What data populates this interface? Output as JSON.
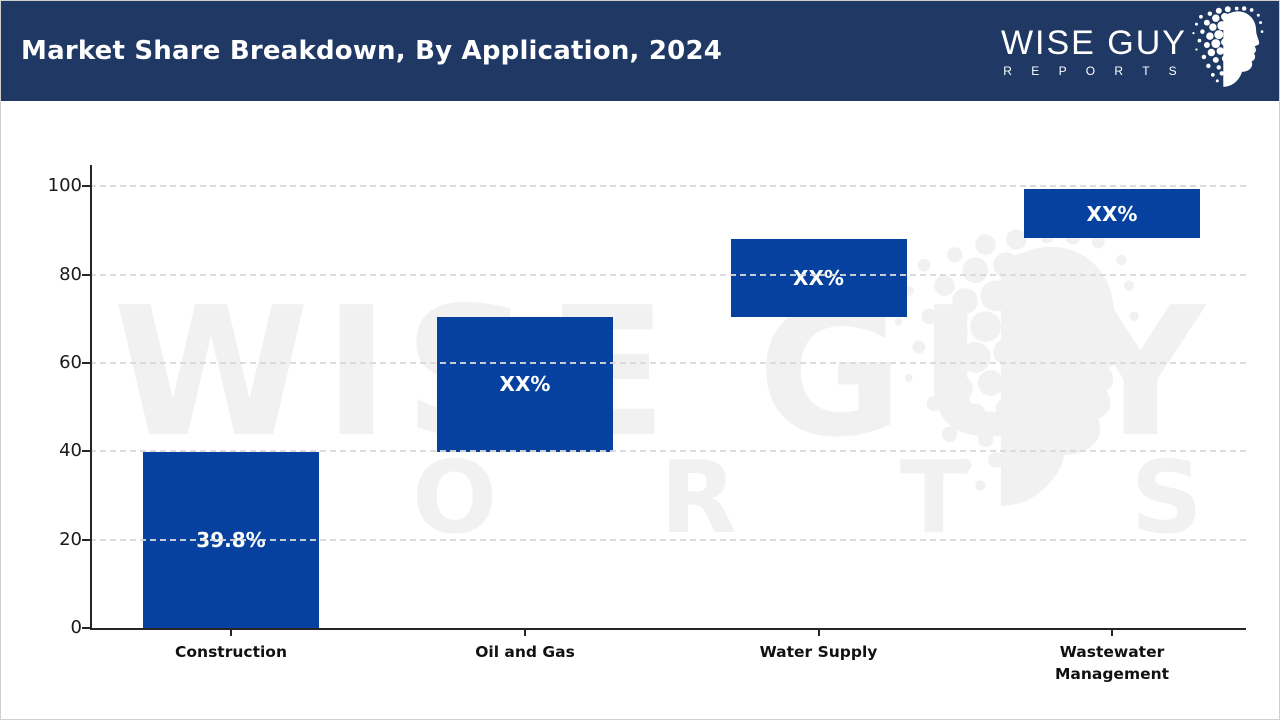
{
  "header": {
    "title": "Market Share Breakdown, By Application, 2024",
    "logo": {
      "wordmark": "WISE GUY",
      "subtext": "R E P O R T S"
    }
  },
  "watermark": {
    "line1": "WISE GUY",
    "line2": "P O R T S"
  },
  "chart_data": {
    "type": "bar",
    "subtype": "floating-segment (waterfall style market share chart)",
    "title": "Market Share Breakdown, By Application, 2024",
    "categories": [
      "Construction",
      "Oil and Gas",
      "Water Supply",
      "Wastewater Management"
    ],
    "segments": [
      {
        "category": "Construction",
        "start": 0,
        "end": 39.8,
        "label": "39.8%"
      },
      {
        "category": "Oil and Gas",
        "start": 39.8,
        "end": 70.5,
        "label": "XX%"
      },
      {
        "category": "Water Supply",
        "start": 70.5,
        "end": 88.2,
        "label": "XX%"
      },
      {
        "category": "Wastewater Management",
        "start": 88.2,
        "end": 99.5,
        "label": "XX%"
      }
    ],
    "y_ticks": [
      0,
      20,
      40,
      60,
      80,
      100
    ],
    "ylim": [
      0,
      105
    ],
    "xlabel": "",
    "ylabel": "",
    "legend": "none",
    "grid": "horizontal-dashed",
    "bar_color": "#06419f",
    "bar_label_color": "#ffffff"
  },
  "colors": {
    "header_bg": "#1f3864",
    "axis": "#262626",
    "grid": "#d9d9d9",
    "watermark": "#f1f1f1"
  }
}
